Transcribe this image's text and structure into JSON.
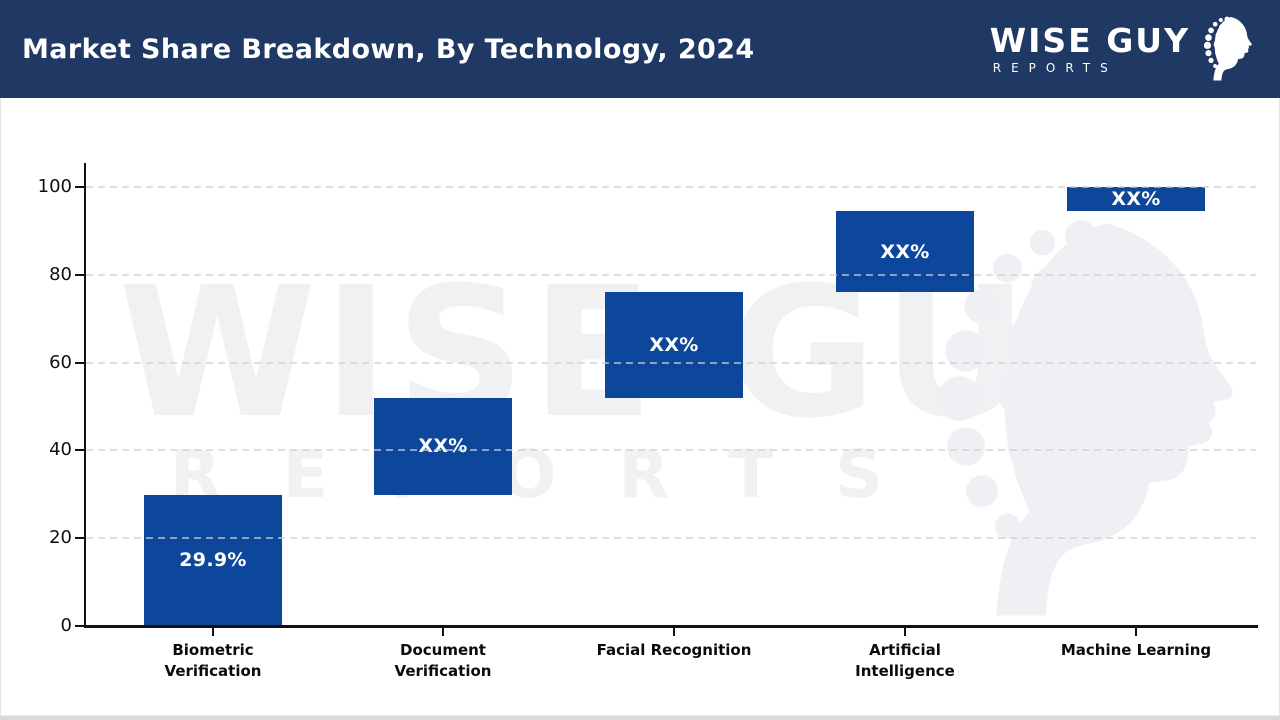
{
  "header": {
    "title": "Market Share Breakdown, By Technology, 2024",
    "logo": {
      "line1": "WISE GUY",
      "line2": "REPORTS",
      "icon": "wiseguy-face-icon"
    }
  },
  "watermark": {
    "line1": "WISE GUY",
    "line2": "REPORTS"
  },
  "chart_data": {
    "type": "bar",
    "subtype": "waterfall",
    "title": "Market Share Breakdown, By Technology, 2024",
    "xlabel": "",
    "ylabel": "",
    "ylim": [
      0,
      105
    ],
    "yticks": [
      0,
      20,
      40,
      60,
      80,
      100
    ],
    "grid": "horizontal dashed",
    "legend": "none",
    "bar_color": "#0d479b",
    "value_label_color": "#ffffff",
    "categories": [
      "Biometric\nVerification",
      "Document\nVerification",
      "Facial Recognition",
      "Artificial\nIntelligence",
      "Machine Learning"
    ],
    "bars": [
      {
        "category": "Biometric Verification",
        "base": 0,
        "top": 29.9,
        "value_label": "29.9%"
      },
      {
        "category": "Document Verification",
        "base": 29.9,
        "top": 52,
        "value_label": "XX%"
      },
      {
        "category": "Facial Recognition",
        "base": 52,
        "top": 76,
        "value_label": "XX%"
      },
      {
        "category": "Artificial Intelligence",
        "base": 76,
        "top": 94.6,
        "value_label": "XX%"
      },
      {
        "category": "Machine Learning",
        "base": 94.6,
        "top": 100,
        "value_label": "XX%"
      }
    ]
  }
}
